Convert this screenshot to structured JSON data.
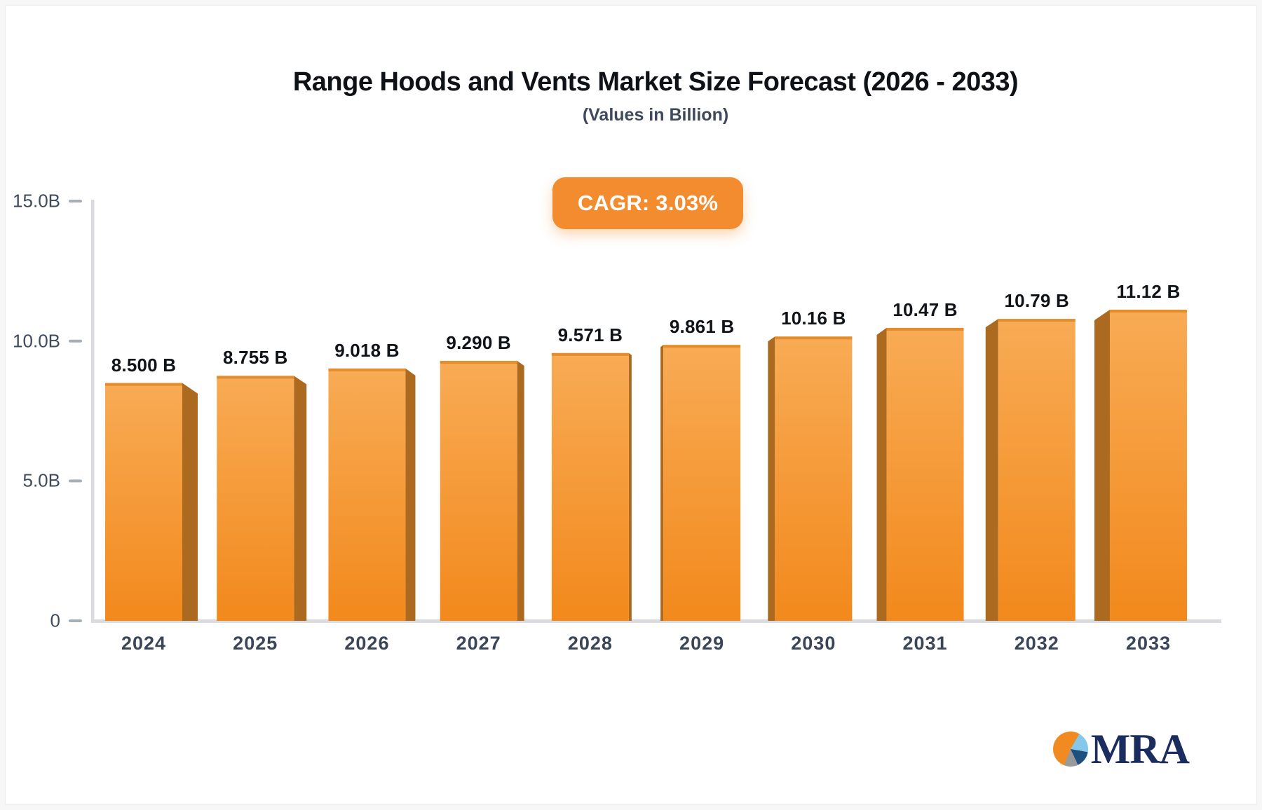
{
  "title": "Range Hoods and Vents Market Size Forecast (2026 - 2033)",
  "subtitle": "(Values in Billion)",
  "badge": {
    "label": "CAGR: 3.03%",
    "bg_color": "#F28C2E",
    "text_color": "#FFFFFF"
  },
  "logo": {
    "text": "MRA",
    "text_color": "#1B2C5E",
    "pie_colors": [
      "#F18A21",
      "#85C8EA",
      "#20507E",
      "#999A9B"
    ]
  },
  "chart_data": {
    "type": "bar",
    "title": "Range Hoods and Vents Market Size Forecast (2026 - 2033)",
    "subtitle": "(Values in Billion)",
    "categories": [
      "2024",
      "2025",
      "2026",
      "2027",
      "2028",
      "2029",
      "2030",
      "2031",
      "2032",
      "2033"
    ],
    "values": [
      8.5,
      8.755,
      9.018,
      9.29,
      9.571,
      9.861,
      10.16,
      10.47,
      10.79,
      11.12
    ],
    "value_labels": [
      "8.500 B",
      "8.755 B",
      "9.018 B",
      "9.290 B",
      "9.571 B",
      "9.861 B",
      "10.16 B",
      "10.47 B",
      "10.79 B",
      "11.12 B"
    ],
    "unit": "Billion",
    "ylim": [
      0,
      15
    ],
    "yticks": [
      {
        "value": 0,
        "label": "0"
      },
      {
        "value": 5,
        "label": "5.0B"
      },
      {
        "value": 10,
        "label": "10.0B"
      },
      {
        "value": 15,
        "label": "15.0B"
      }
    ],
    "grid": false,
    "legend": null,
    "bar_face_top_color": "#F8AB55",
    "bar_face_bottom_color": "#F2891C",
    "bar_top_edge_color": "#E38D2B",
    "bar_side_3d_color": "#AB6A20",
    "axis_line_color": "#D9DBDE",
    "tick_color": "#A6AFBA",
    "cagr": "3.03%"
  }
}
